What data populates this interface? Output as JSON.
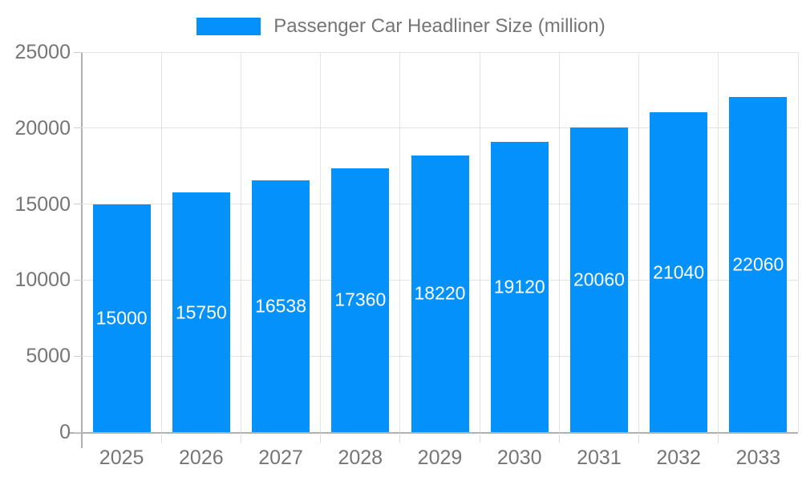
{
  "chart_data": {
    "type": "bar",
    "title": "Passenger Car Headliner Size (million)",
    "series": [
      {
        "name": "Passenger Car Headliner Size (million)",
        "values": [
          15000,
          15750,
          16538,
          17360,
          18220,
          19120,
          20060,
          21040,
          22060
        ]
      }
    ],
    "categories": [
      "2025",
      "2026",
      "2027",
      "2028",
      "2029",
      "2030",
      "2031",
      "2032",
      "2033"
    ],
    "xlabel": "",
    "ylabel": "",
    "ylim": [
      0,
      25000
    ],
    "yticks": [
      0,
      5000,
      10000,
      15000,
      20000,
      25000
    ],
    "grid": true,
    "legend_position": "top-center",
    "value_labels": "inside-center",
    "colors": {
      "bar": "#0591fa",
      "bar_label_text": "#ffffff",
      "axis_text": "#757575",
      "axis_line": "#b0b0b0",
      "gridline": "#e3e3e3",
      "background": "#ffffff"
    }
  }
}
